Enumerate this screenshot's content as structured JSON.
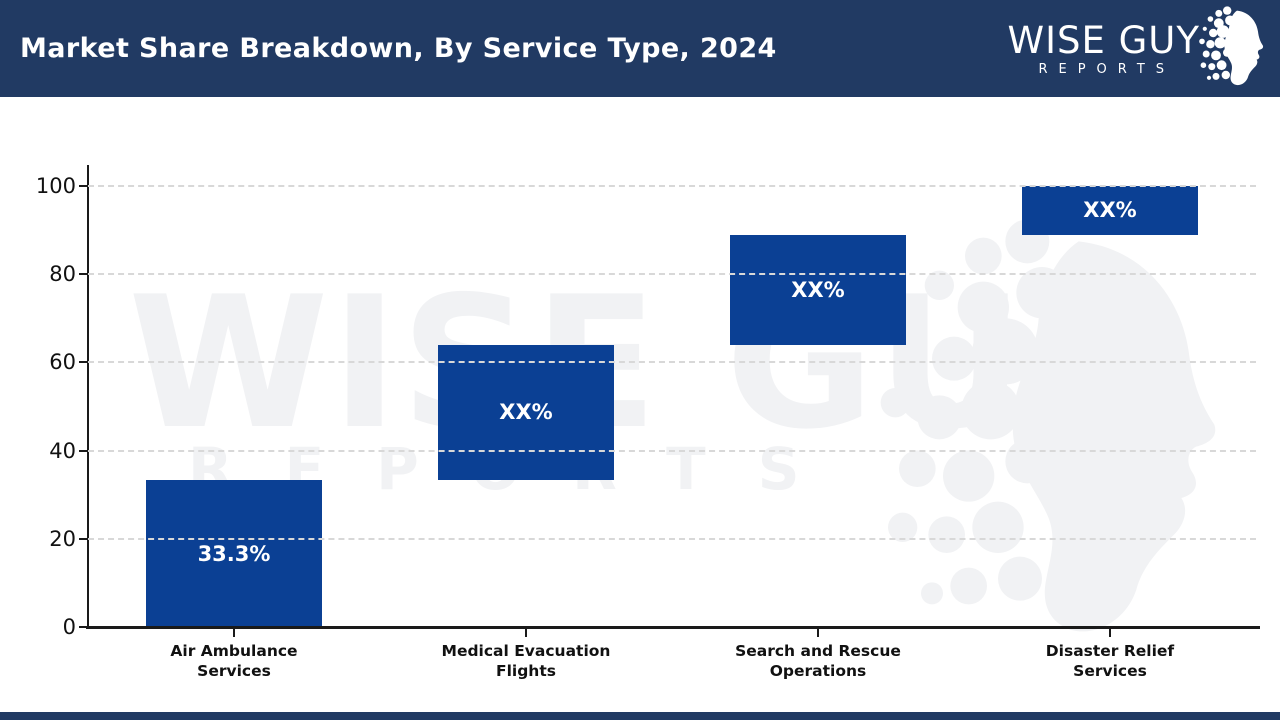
{
  "header": {
    "title": "Market Share Breakdown, By Service Type, 2024",
    "logo": {
      "line1": "WISE GUY",
      "line2": "REPORTS"
    }
  },
  "watermark": {
    "line1": "WISE GUY",
    "line2": "REPORTS"
  },
  "chart_data": {
    "type": "bar",
    "subtype": "waterfall",
    "title": "Market Share Breakdown, By Service Type, 2024",
    "categories": [
      "Air Ambulance Services",
      "Medical Evacuation Flights",
      "Search and Rescue Operations",
      "Disaster Relief Services"
    ],
    "bars": [
      {
        "category": "Air Ambulance Services",
        "label_lines": [
          "Air Ambulance",
          "Services"
        ],
        "start": 0,
        "end": 33.3,
        "value_label": "33.3%"
      },
      {
        "category": "Medical Evacuation Flights",
        "label_lines": [
          "Medical Evacuation",
          "Flights"
        ],
        "start": 33.3,
        "end": 64,
        "value_label": "XX%"
      },
      {
        "category": "Search and Rescue Operations",
        "label_lines": [
          "Search and Rescue",
          "Operations"
        ],
        "start": 64,
        "end": 89,
        "value_label": "XX%"
      },
      {
        "category": "Disaster Relief Services",
        "label_lines": [
          "Disaster Relief",
          "Services"
        ],
        "start": 89,
        "end": 100,
        "value_label": "XX%"
      }
    ],
    "xlabel": "",
    "ylabel": "",
    "ylim": [
      0,
      100
    ],
    "yticks": [
      0,
      20,
      40,
      60,
      80,
      100
    ],
    "grid": "horizontal-dashed",
    "legend": "none"
  },
  "colors": {
    "header_bg": "#213a63",
    "footer_bg": "#213a63",
    "bar": "#0b4094",
    "bar_value_text": "#ffffff",
    "grid": "#d8d8d8",
    "axis": "#1a1a1a",
    "watermark": "#f1f2f4"
  }
}
